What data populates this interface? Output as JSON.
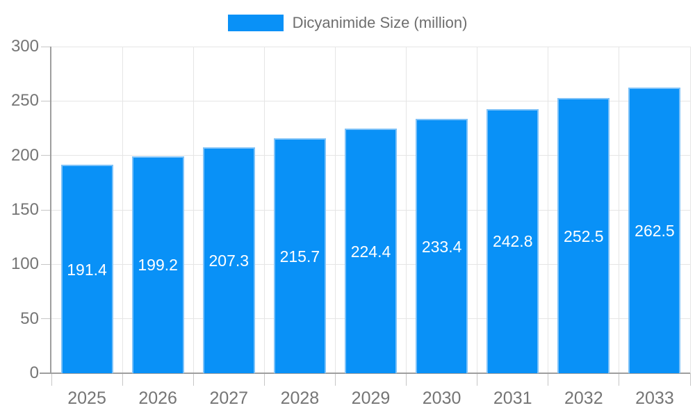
{
  "legend": {
    "label": "Dicyanimide Size (million)"
  },
  "colors": {
    "bar_fill": "#0991f7",
    "bar_edge": "#7ec2f8",
    "bar_label_text": "#ffffff",
    "grid": "#e5e5e5",
    "axis": "#9e9e9e",
    "tick": "#c6c6c6",
    "axis_text": "#757575",
    "legend_text": "#6e6e6e",
    "background": "#ffffff"
  },
  "chart_data": {
    "type": "bar",
    "title": "",
    "categories": [
      "2025",
      "2026",
      "2027",
      "2028",
      "2029",
      "2030",
      "2031",
      "2032",
      "2033"
    ],
    "values": [
      191.4,
      199.2,
      207.3,
      215.7,
      224.4,
      233.4,
      242.8,
      252.5,
      262.5
    ],
    "series": [
      {
        "name": "Dicyanimide Size (million)",
        "values": [
          191.4,
          199.2,
          207.3,
          215.7,
          224.4,
          233.4,
          242.8,
          252.5,
          262.5
        ]
      }
    ],
    "xlabel": "",
    "ylabel": "",
    "ylim": [
      0,
      300
    ],
    "yticks": [
      0,
      50,
      100,
      150,
      200,
      250,
      300
    ],
    "grid": true,
    "legend_position": "top",
    "value_labels": "inside-center"
  }
}
